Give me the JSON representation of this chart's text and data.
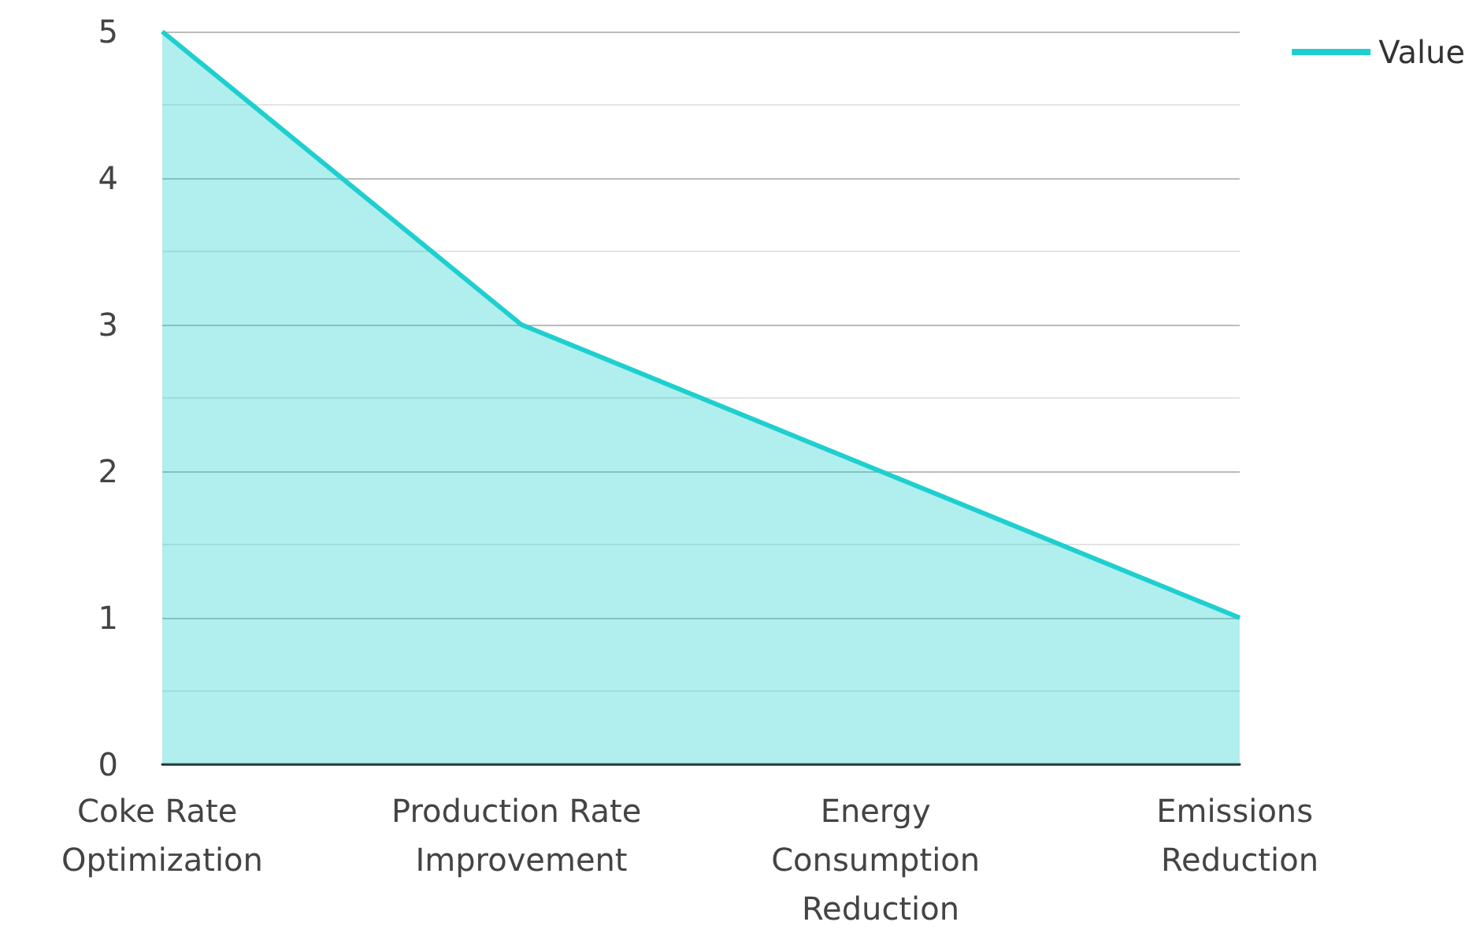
{
  "chart_data": {
    "type": "area",
    "categories": [
      "Coke Rate Optimization",
      "Production Rate Improvement",
      "Energy Consumption Reduction",
      "Emissions Reduction"
    ],
    "series": [
      {
        "name": "Value",
        "color": "#1fcfcf",
        "values": [
          5,
          3,
          2,
          1
        ]
      }
    ],
    "ylim": [
      0,
      5
    ],
    "yticks": [
      0,
      1,
      2,
      3,
      4,
      5
    ],
    "grid": "y",
    "legend": "top right",
    "marker": "none"
  }
}
